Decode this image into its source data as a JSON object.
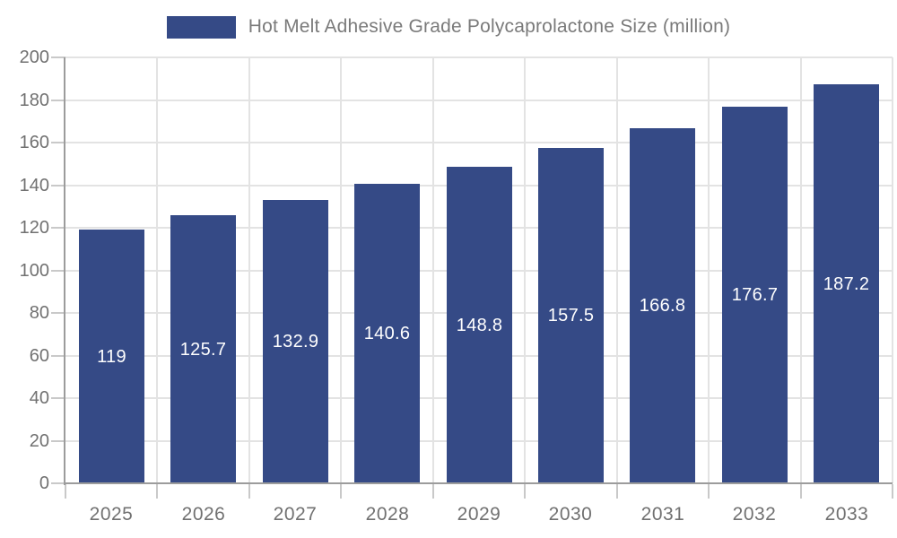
{
  "chart_data": {
    "type": "bar",
    "title": "Hot Melt Adhesive Grade Polycaprolactone Size (million)",
    "categories": [
      "2025",
      "2026",
      "2027",
      "2028",
      "2029",
      "2030",
      "2031",
      "2032",
      "2033"
    ],
    "values": [
      119,
      125.7,
      132.9,
      140.6,
      148.8,
      157.5,
      166.8,
      176.7,
      187.2
    ],
    "xlabel": "",
    "ylabel": "",
    "ylim": [
      0,
      200
    ],
    "ytick_step": 20,
    "ytick_labels": [
      "0",
      "20",
      "40",
      "60",
      "80",
      "100",
      "120",
      "140",
      "160",
      "180",
      "200"
    ],
    "grid": true,
    "legend_position": "top-center",
    "value_label_position": "inside-middle",
    "colors": {
      "bar": "#354a86",
      "value_label": "#ffffff",
      "gridline": "#e3e3e3",
      "axis_line": "#9c9c9c",
      "tick": "#c9c9c9",
      "axis_label_text": "#717171",
      "legend_text": "#7a7a7a",
      "background": "#ffffff"
    }
  }
}
